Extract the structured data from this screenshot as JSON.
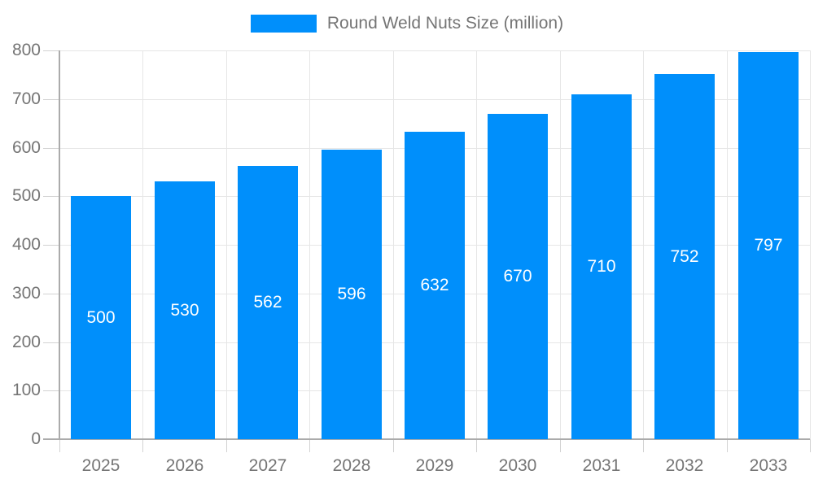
{
  "legend": {
    "label": "Round Weld Nuts Size (million)"
  },
  "colors": {
    "bar": "#008FFB",
    "grid": "#e6e6e6",
    "tick": "#d2d2d2",
    "axis": "#ababab",
    "label_text": "#757575",
    "value_text": "#ffffff",
    "background": "#ffffff"
  },
  "chart_data": {
    "type": "bar",
    "title": "Round Weld Nuts Size (million)",
    "categories": [
      "2025",
      "2026",
      "2027",
      "2028",
      "2029",
      "2030",
      "2031",
      "2032",
      "2033"
    ],
    "values": [
      500,
      530,
      562,
      596,
      632,
      670,
      710,
      752,
      797
    ],
    "xlabel": "",
    "ylabel": "",
    "ylim": [
      0,
      800
    ],
    "ytick_step": 100,
    "grid": true,
    "legend_position": "top",
    "value_label_position": "inside-center"
  }
}
